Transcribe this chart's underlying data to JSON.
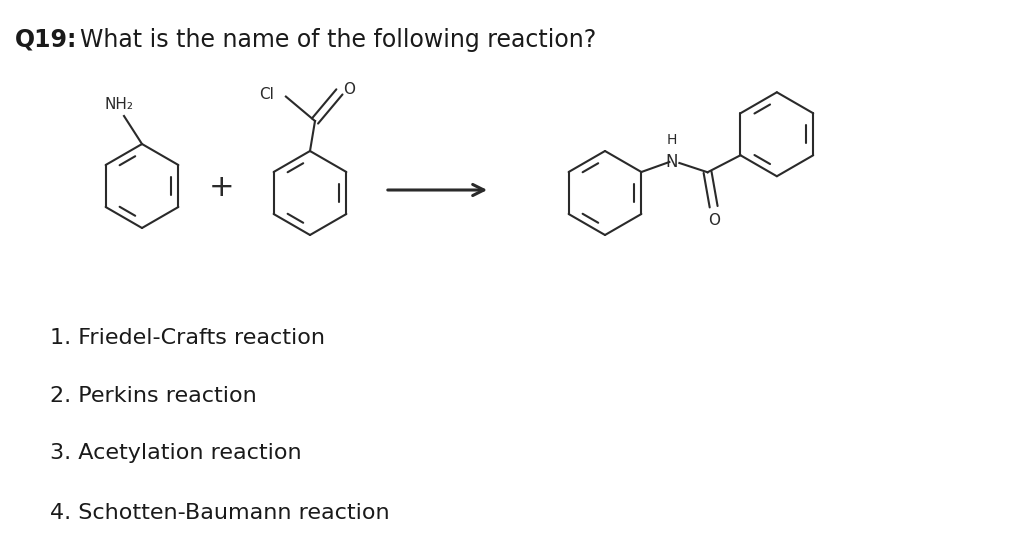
{
  "title_bold": "Q19:",
  "title_text": "What is the name of the following reaction?",
  "options": [
    "1. Friedel-Crafts reaction",
    "2. Perkins reaction",
    "3. Acetylation reaction",
    "4. Schotten-Baumann reaction"
  ],
  "background_color": "#ffffff",
  "text_color": "#1a1a1a",
  "title_fontsize": 17,
  "option_fontsize": 16,
  "fig_width": 10.24,
  "fig_height": 5.58
}
